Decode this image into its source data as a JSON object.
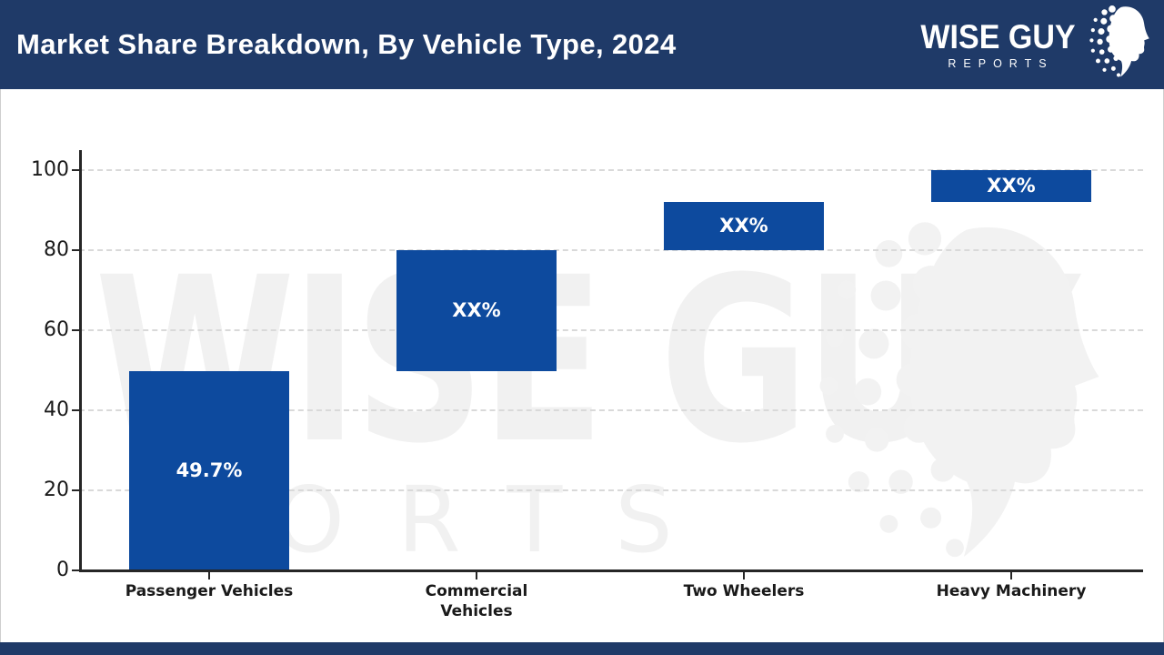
{
  "header": {
    "title": "Market Share Breakdown, By Vehicle Type, 2024",
    "logo": {
      "line1": "WISE GUY",
      "line2": "REPORTS"
    }
  },
  "watermark": {
    "line1": "WISE GUY",
    "line2": "PORTS"
  },
  "chart_data": {
    "type": "bar",
    "subtype": "waterfall",
    "title": "Market Share Breakdown, By Vehicle Type, 2024",
    "categories": [
      "Passenger Vehicles",
      "Commercial\nVehicles",
      "Two Wheelers",
      "Heavy Machinery"
    ],
    "series": [
      {
        "name": "Market Share",
        "segments": [
          {
            "category": "Passenger Vehicles",
            "start": 0,
            "end": 49.7,
            "label": "49.7%"
          },
          {
            "category": "Commercial Vehicles",
            "start": 49.7,
            "end": 80,
            "label": "XX%"
          },
          {
            "category": "Two Wheelers",
            "start": 80,
            "end": 92,
            "label": "XX%"
          },
          {
            "category": "Heavy Machinery",
            "start": 92,
            "end": 100,
            "label": "XX%"
          }
        ]
      }
    ],
    "xlabel": "",
    "ylabel": "",
    "ylim": [
      0,
      100
    ],
    "yticks": [
      0,
      20,
      40,
      60,
      80,
      100
    ],
    "grid": "horizontal-dashed",
    "legend": "none",
    "colors": {
      "bar": "#0d4a9e",
      "value_label": "#ffffff",
      "axis": "#262626",
      "gridline": "#d9d9d9"
    }
  },
  "colors": {
    "header_bg": "#1f3a68",
    "footer_bg": "#1f3a68",
    "background": "#ffffff",
    "watermark": "#f1f1f1",
    "frame_border": "#cfcfcf"
  }
}
